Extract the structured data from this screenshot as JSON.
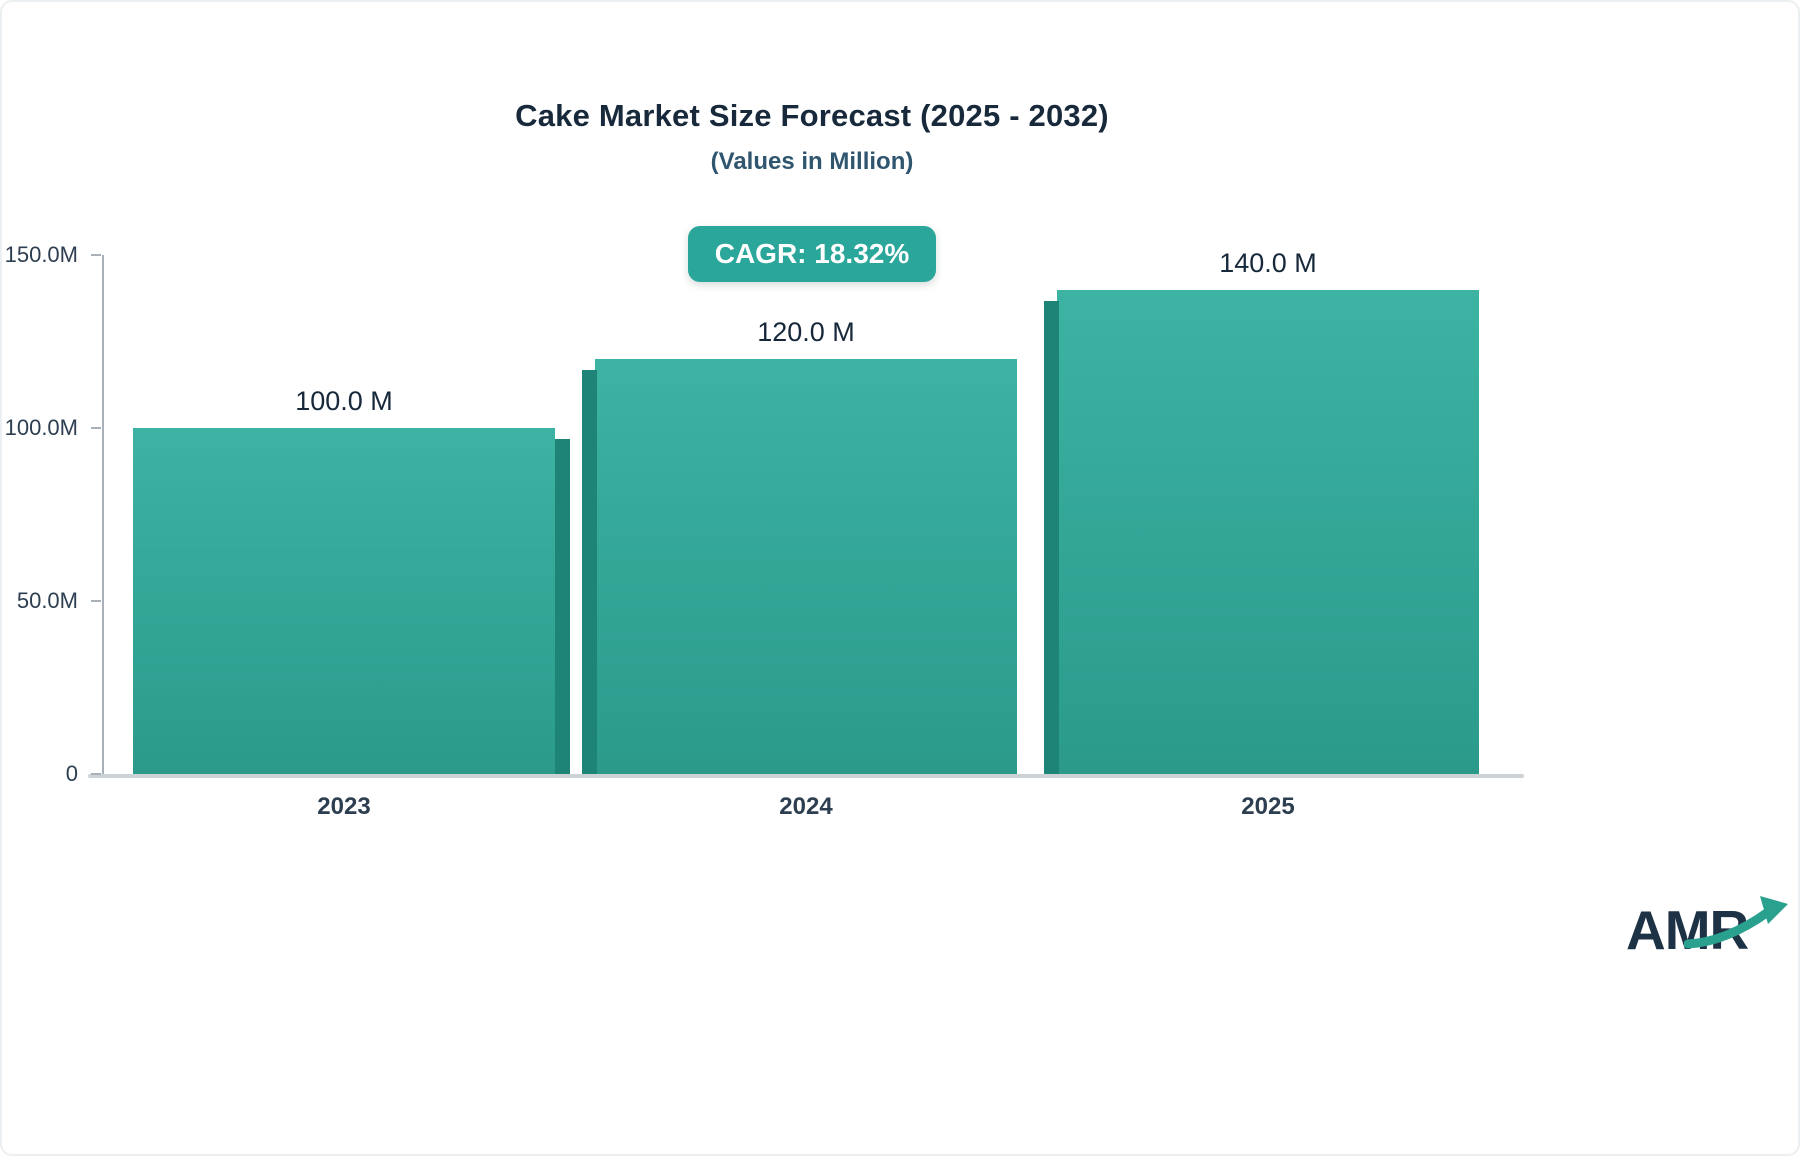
{
  "header": {
    "title": "Cake Market Size Forecast (2025 - 2032)",
    "subtitle": "(Values in Million)",
    "badge": "CAGR: 18.32%"
  },
  "logo": {
    "text": "AMR",
    "arrow_icon": "trend-arrow-icon"
  },
  "colors": {
    "title_text": "#17293b",
    "subtitle_text": "#2f566e",
    "badge_background": "#2aa69a",
    "badge_text": "#ffffff",
    "bar_gradient_top": "#3cb3a3",
    "bar_gradient_bottom": "#2b9a8b",
    "bar_side_face": "#1e8478",
    "axis_text": "#2c3e50",
    "axis_line": "#a9b0b7",
    "logo_text": "#1e3246",
    "logo_arrow": "#2aa08f"
  },
  "chart_data": {
    "type": "bar",
    "title": "Cake Market Size Forecast (2025 - 2032)",
    "subtitle": "(Values in Million)",
    "annotation": "CAGR: 18.32%",
    "categories": [
      "2023",
      "2024",
      "2025"
    ],
    "values": [
      100.0,
      120.0,
      140.0
    ],
    "value_labels": [
      "100.0 M",
      "120.0 M",
      "140.0 M"
    ],
    "xlabel": "",
    "ylabel": "",
    "ylim": [
      0,
      150
    ],
    "yticks": [
      {
        "label": "150.0M",
        "value": 150
      },
      {
        "label": "100.0M",
        "value": 100
      },
      {
        "label": "50.0M",
        "value": 50
      },
      {
        "label": "0",
        "value": 0
      }
    ],
    "grid": false,
    "legend": false
  }
}
